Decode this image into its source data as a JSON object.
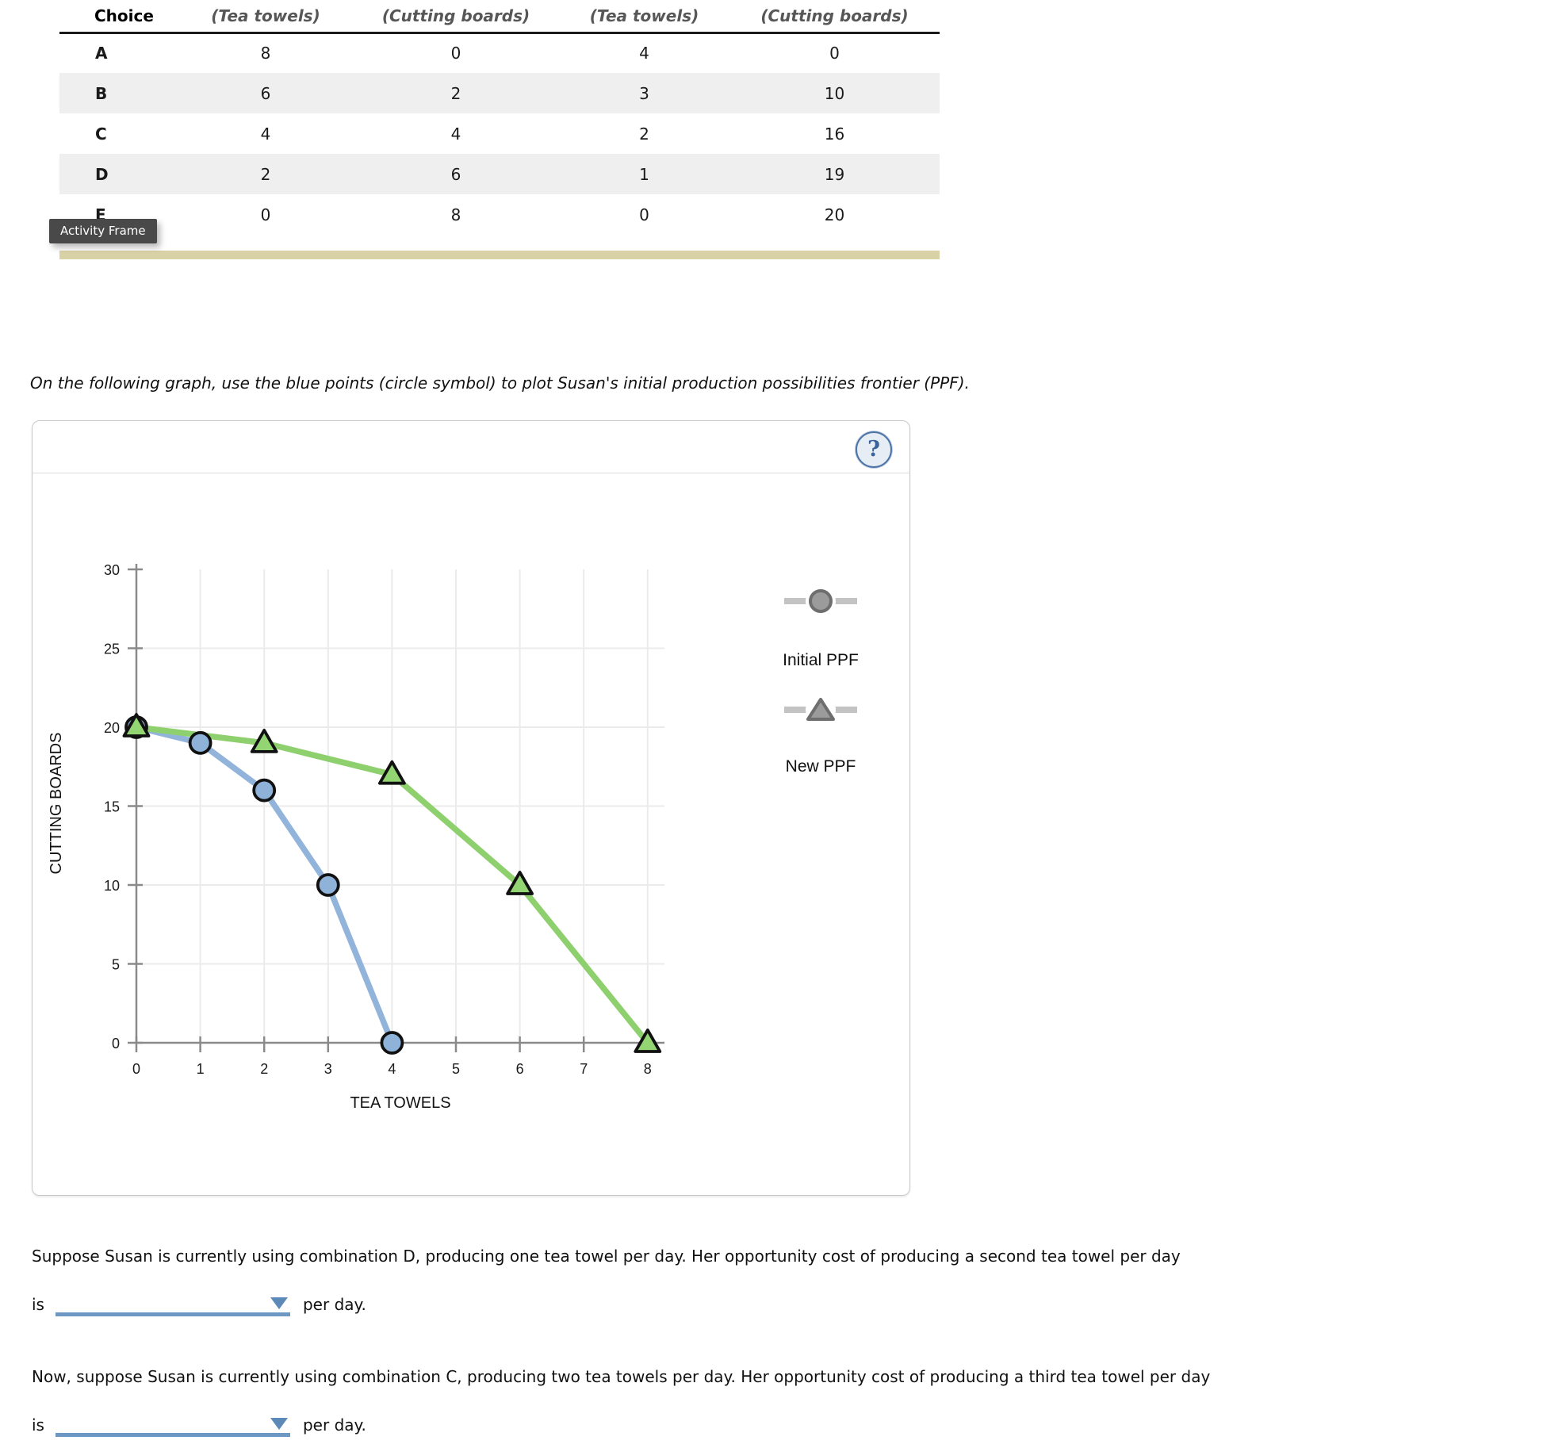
{
  "table": {
    "headers": [
      "Choice",
      "(Tea towels)",
      "(Cutting boards)",
      "(Tea towels)",
      "(Cutting boards)"
    ],
    "rows": [
      {
        "choice": "A",
        "values": [
          "8",
          "0",
          "4",
          "0"
        ]
      },
      {
        "choice": "B",
        "values": [
          "6",
          "2",
          "3",
          "10"
        ]
      },
      {
        "choice": "C",
        "values": [
          "4",
          "4",
          "2",
          "16"
        ]
      },
      {
        "choice": "D",
        "values": [
          "2",
          "6",
          "1",
          "19"
        ]
      },
      {
        "choice": "E",
        "values": [
          "0",
          "8",
          "0",
          "20"
        ]
      }
    ]
  },
  "activity_frame": {
    "label": "Activity Frame"
  },
  "instruction": "On the following graph, use the blue points (circle symbol) to plot Susan's initial production possibilities frontier (PPF).",
  "panel": {
    "help_label": "?"
  },
  "chart_data": {
    "type": "line",
    "xlabel": "TEA TOWELS",
    "ylabel": "CUTTING BOARDS",
    "xlim": [
      0,
      8
    ],
    "ylim": [
      0,
      30
    ],
    "x_ticks": [
      0,
      1,
      2,
      3,
      4,
      5,
      6,
      7,
      8
    ],
    "y_ticks": [
      0,
      5,
      10,
      15,
      20,
      25,
      30
    ],
    "grid": true,
    "legend_position": "right",
    "series": [
      {
        "name": "Initial PPF",
        "marker": "circle",
        "color": "#92b4da",
        "marker_fill": "#8fb2d9",
        "points": [
          [
            0,
            20
          ],
          [
            1,
            19
          ],
          [
            2,
            16
          ],
          [
            3,
            10
          ],
          [
            4,
            0
          ]
        ]
      },
      {
        "name": "New PPF",
        "marker": "triangle",
        "color": "#8ed06d",
        "marker_fill": "#93d473",
        "points": [
          [
            0,
            20
          ],
          [
            2,
            19
          ],
          [
            4,
            17
          ],
          [
            6,
            10
          ],
          [
            8,
            0
          ]
        ]
      }
    ]
  },
  "legend": {
    "items": [
      {
        "label": "Initial PPF",
        "marker": "circle"
      },
      {
        "label": "New PPF",
        "marker": "triangle"
      }
    ]
  },
  "questions": [
    {
      "text": "Suppose Susan is currently using combination D, producing one tea towel per day. Her opportunity cost of producing a second tea towel per day",
      "prefix": "is",
      "dropdown_value": "",
      "suffix": "per day."
    },
    {
      "text": "Now, suppose Susan is currently using combination C, producing two tea towels per day. Her opportunity cost of producing a third tea towel per day",
      "prefix": "is",
      "dropdown_value": "",
      "suffix": "per day."
    }
  ],
  "colors": {
    "grid": "#ebebeb",
    "axis": "#8a8a8a",
    "marker_stroke": "#111111",
    "stripe": "#efefef",
    "table_rule": "#d9d2a6",
    "tooltip_bg": "#494949",
    "dropdown_line": "#6d98c4",
    "dropdown_caret": "#5c89b8",
    "help_blue": "#4c74a6",
    "legend_bar": "#c3c3c3",
    "legend_marker": "#9b9b9b",
    "legend_marker_border": "#6e6e6e"
  }
}
